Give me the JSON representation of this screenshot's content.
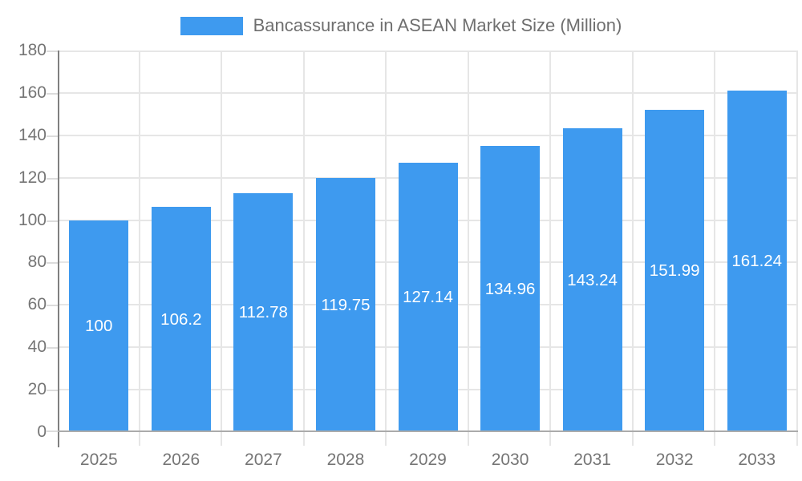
{
  "page": {
    "background": "#ffffff"
  },
  "legend": {
    "label": "Bancassurance in ASEAN Market Size (Million)"
  },
  "chart_data": {
    "type": "bar",
    "title": "Bancassurance in ASEAN Market Size (Million)",
    "series": [
      {
        "name": "Bancassurance in ASEAN Market Size (Million)",
        "values": [
          100,
          106.2,
          112.78,
          119.75,
          127.14,
          134.96,
          143.24,
          151.99,
          161.24
        ],
        "labels": [
          "100",
          "106.2",
          "112.78",
          "119.75",
          "127.14",
          "134.96",
          "143.24",
          "151.99",
          "161.24"
        ]
      }
    ],
    "categories": [
      "2025",
      "2026",
      "2027",
      "2028",
      "2029",
      "2030",
      "2031",
      "2032",
      "2033"
    ],
    "xlabel": "",
    "ylabel": "",
    "ylim": [
      0,
      180
    ],
    "yticks": [
      0,
      20,
      40,
      60,
      80,
      100,
      120,
      140,
      160,
      180
    ],
    "grid": "horizontal and vertical",
    "legend_position": "top-center",
    "value_label_position": "inside-center",
    "colors": {
      "bar": "#3e9aef",
      "bar_value_text": "#ffffff",
      "gridline": "#e6e6e6",
      "tick": "#dcdcdc",
      "y_axis_line": "#808080",
      "x_axis_line": "#ababab",
      "axis_text": "#757575",
      "legend_text": "#6f6f6f"
    }
  }
}
